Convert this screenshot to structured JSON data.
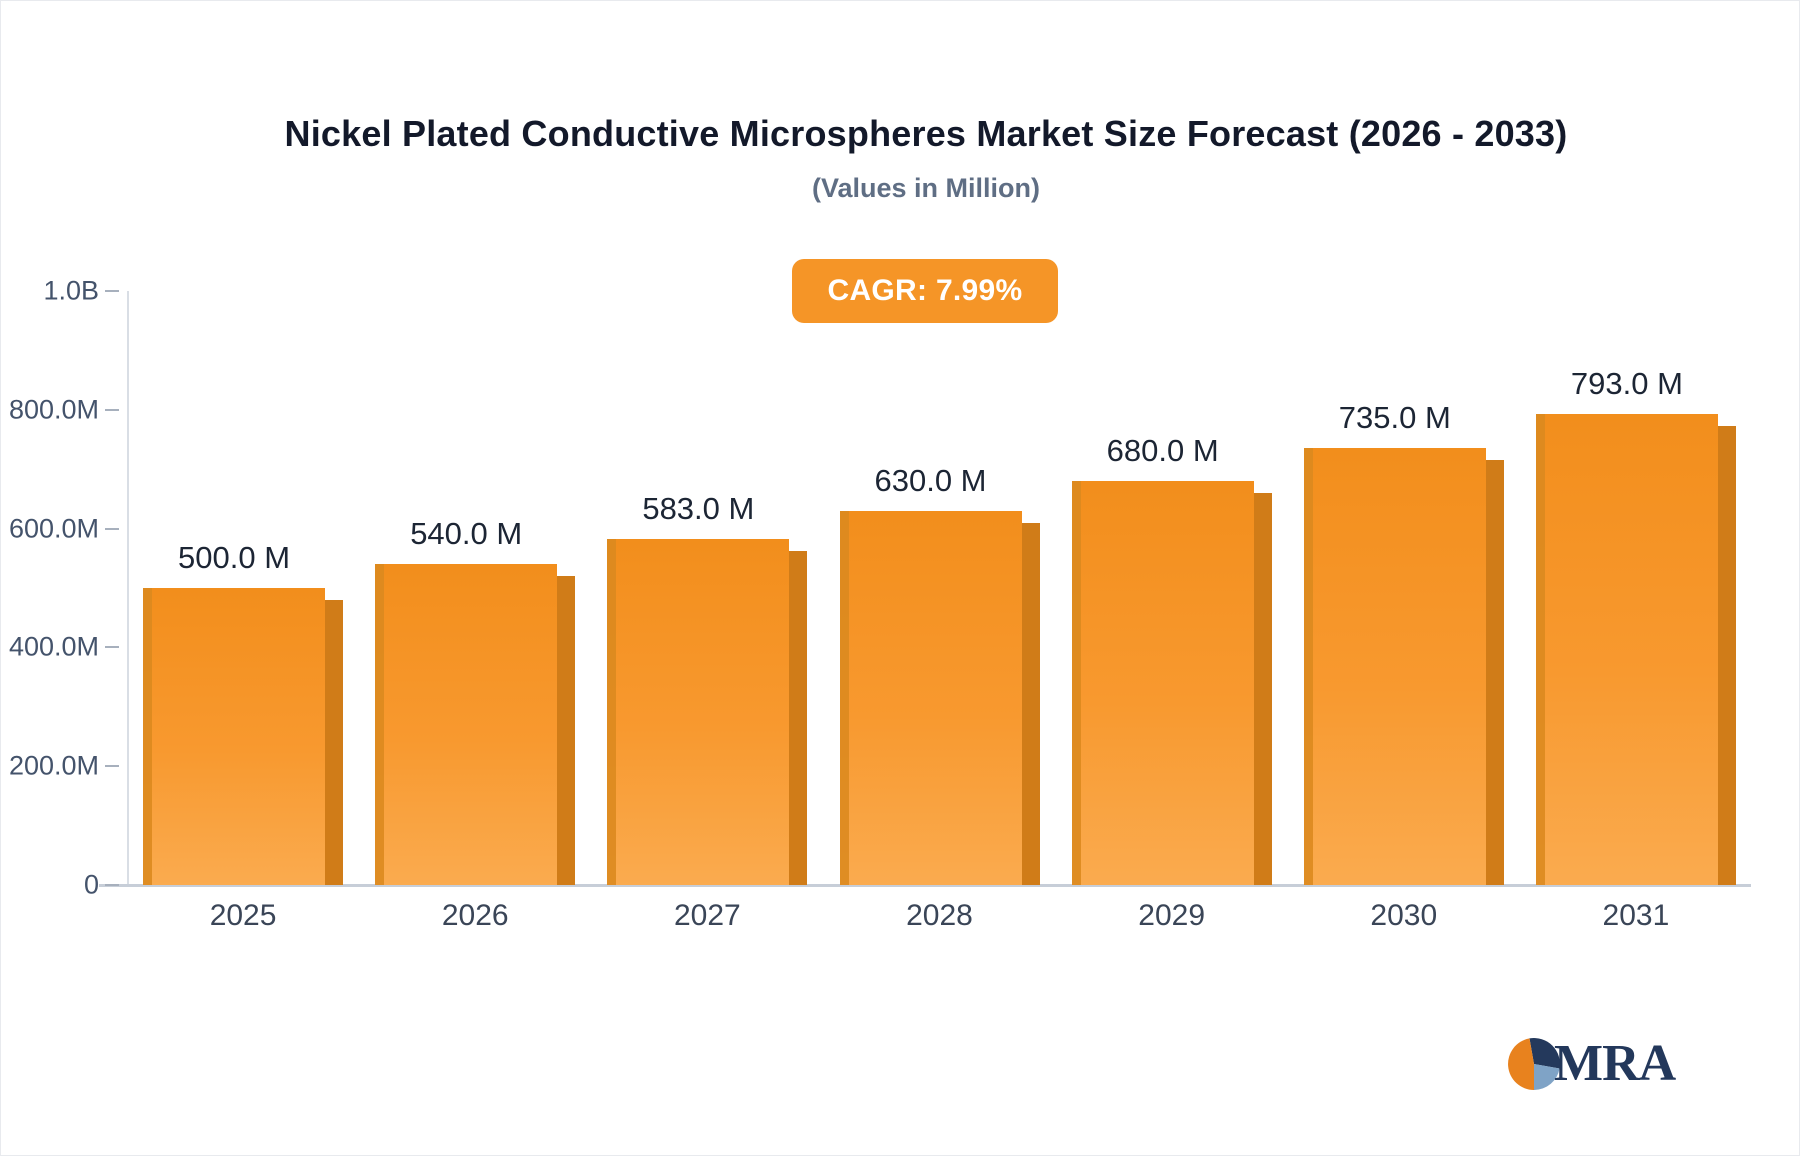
{
  "title": "Nickel Plated Conductive Microspheres Market Size Forecast (2026 - 2033)",
  "subtitle": "(Values in Million)",
  "badge": {
    "label": "CAGR: 7.99%",
    "color": "#F59527"
  },
  "logo": {
    "text": "MRA"
  },
  "chart_data": {
    "type": "bar",
    "title": "Nickel Plated Conductive Microspheres Market Size Forecast (2026 - 2033)",
    "subtitle": "(Values in Million)",
    "categories": [
      "2025",
      "2026",
      "2027",
      "2028",
      "2029",
      "2030",
      "2031"
    ],
    "values": [
      500,
      540,
      583,
      630,
      680,
      735,
      793
    ],
    "value_labels": [
      "500.0 M",
      "540.0 M",
      "583.0 M",
      "630.0 M",
      "680.0 M",
      "735.0 M",
      "793.0 M"
    ],
    "y_ticks": [
      "1.0B",
      "800.0M",
      "600.0M",
      "400.0M",
      "200.0M",
      "0"
    ],
    "y_tick_values": [
      1000,
      800,
      600,
      400,
      200,
      0
    ],
    "ylim": [
      0,
      1000
    ],
    "xlabel": "",
    "ylabel": "",
    "grid": false,
    "legend": false,
    "bar_color": "#F8992F",
    "bar_color_top": "#F28E1C",
    "bar_color_bottom": "#FAAB4F",
    "bar_side_color": "#D07C18",
    "bar_edge_color": "#DB8A1F",
    "logo_colors": {
      "navy": "#24395C",
      "blue": "#7FA3C6",
      "orange": "#E8821E"
    }
  }
}
